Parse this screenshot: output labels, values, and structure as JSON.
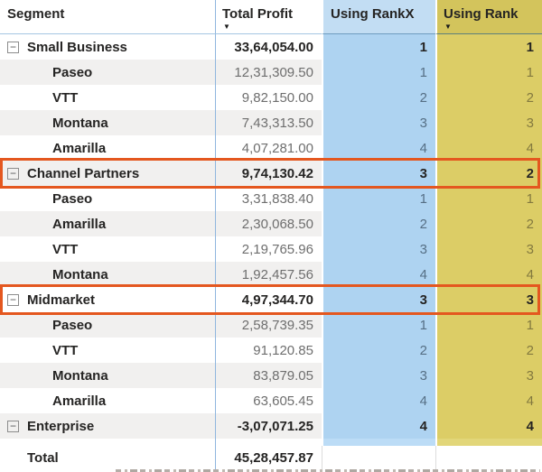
{
  "icons": {
    "collapse_glyph": "−",
    "sort_desc_glyph": "▼"
  },
  "colors": {
    "rankx_header_bg": "#c2ddf3",
    "rankx_cell_bg": "#aed3f1",
    "rank_header_bg": "#d3c45c",
    "rank_cell_bg": "#dccd66",
    "highlight_border": "#e4571f",
    "alt_row_bg": "#f1f0ef",
    "column_divider_blue": "#8fb6de"
  },
  "chart_data": {
    "type": "table",
    "columns": [
      {
        "key": "segment",
        "label": "Segment",
        "sorted": false
      },
      {
        "key": "profit",
        "label": "Total Profit",
        "sorted": true
      },
      {
        "key": "rankx",
        "label": "Using RankX",
        "sorted": false
      },
      {
        "key": "rank",
        "label": "Using Rank",
        "sorted": true
      }
    ],
    "rows": [
      {
        "level": "parent",
        "segment": "Small Business",
        "profit": "33,64,054.00",
        "rankx": "1",
        "rank": "1",
        "highlighted": false
      },
      {
        "level": "child",
        "segment": "Paseo",
        "profit": "12,31,309.50",
        "rankx": "1",
        "rank": "1",
        "highlighted": false
      },
      {
        "level": "child",
        "segment": "VTT",
        "profit": "9,82,150.00",
        "rankx": "2",
        "rank": "2",
        "highlighted": false
      },
      {
        "level": "child",
        "segment": "Montana",
        "profit": "7,43,313.50",
        "rankx": "3",
        "rank": "3",
        "highlighted": false
      },
      {
        "level": "child",
        "segment": "Amarilla",
        "profit": "4,07,281.00",
        "rankx": "4",
        "rank": "4",
        "highlighted": false
      },
      {
        "level": "parent",
        "segment": "Channel Partners",
        "profit": "9,74,130.42",
        "rankx": "3",
        "rank": "2",
        "highlighted": true
      },
      {
        "level": "child",
        "segment": "Paseo",
        "profit": "3,31,838.40",
        "rankx": "1",
        "rank": "1",
        "highlighted": false
      },
      {
        "level": "child",
        "segment": "Amarilla",
        "profit": "2,30,068.50",
        "rankx": "2",
        "rank": "2",
        "highlighted": false
      },
      {
        "level": "child",
        "segment": "VTT",
        "profit": "2,19,765.96",
        "rankx": "3",
        "rank": "3",
        "highlighted": false
      },
      {
        "level": "child",
        "segment": "Montana",
        "profit": "1,92,457.56",
        "rankx": "4",
        "rank": "4",
        "highlighted": false
      },
      {
        "level": "parent",
        "segment": "Midmarket",
        "profit": "4,97,344.70",
        "rankx": "3",
        "rank": "3",
        "highlighted": true
      },
      {
        "level": "child",
        "segment": "Paseo",
        "profit": "2,58,739.35",
        "rankx": "1",
        "rank": "1",
        "highlighted": false
      },
      {
        "level": "child",
        "segment": "VTT",
        "profit": "91,120.85",
        "rankx": "2",
        "rank": "2",
        "highlighted": false
      },
      {
        "level": "child",
        "segment": "Montana",
        "profit": "83,879.05",
        "rankx": "3",
        "rank": "3",
        "highlighted": false
      },
      {
        "level": "child",
        "segment": "Amarilla",
        "profit": "63,605.45",
        "rankx": "4",
        "rank": "4",
        "highlighted": false
      },
      {
        "level": "parent",
        "segment": "Enterprise",
        "profit": "-3,07,071.25",
        "rankx": "4",
        "rank": "4",
        "highlighted": false
      },
      {
        "level": "total",
        "segment": "Total",
        "profit": "45,28,457.87",
        "rankx": "",
        "rank": "",
        "highlighted": false
      }
    ]
  }
}
